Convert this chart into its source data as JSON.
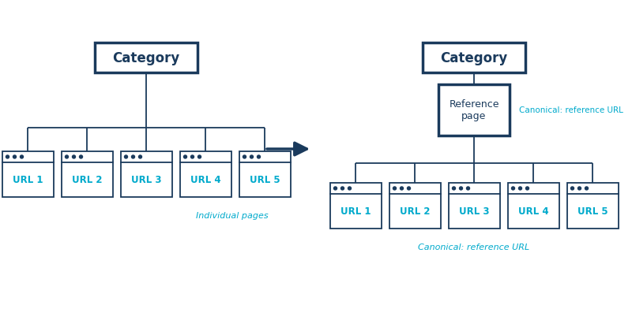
{
  "bg_color": "#ffffff",
  "line_color": "#1a3a5c",
  "url_text_color": "#00aacc",
  "label_color": "#00aacc",
  "cat_text_color": "#1a3a5c",
  "arrow_color": "#1a3a5c",
  "left_category": "Category",
  "right_category": "Category",
  "ref_label": "Reference\npage",
  "url_labels": [
    "URL 1",
    "URL 2",
    "URL 3",
    "URL 4",
    "URL 5"
  ],
  "left_footnote": "Individual pages",
  "right_footnote": "Canonical: reference URL",
  "canonical_side_label": "Canonical: reference URL",
  "lw": 1.3,
  "lw_thick": 2.5,
  "figw": 8.0,
  "figh": 4.02,
  "dpi": 100
}
